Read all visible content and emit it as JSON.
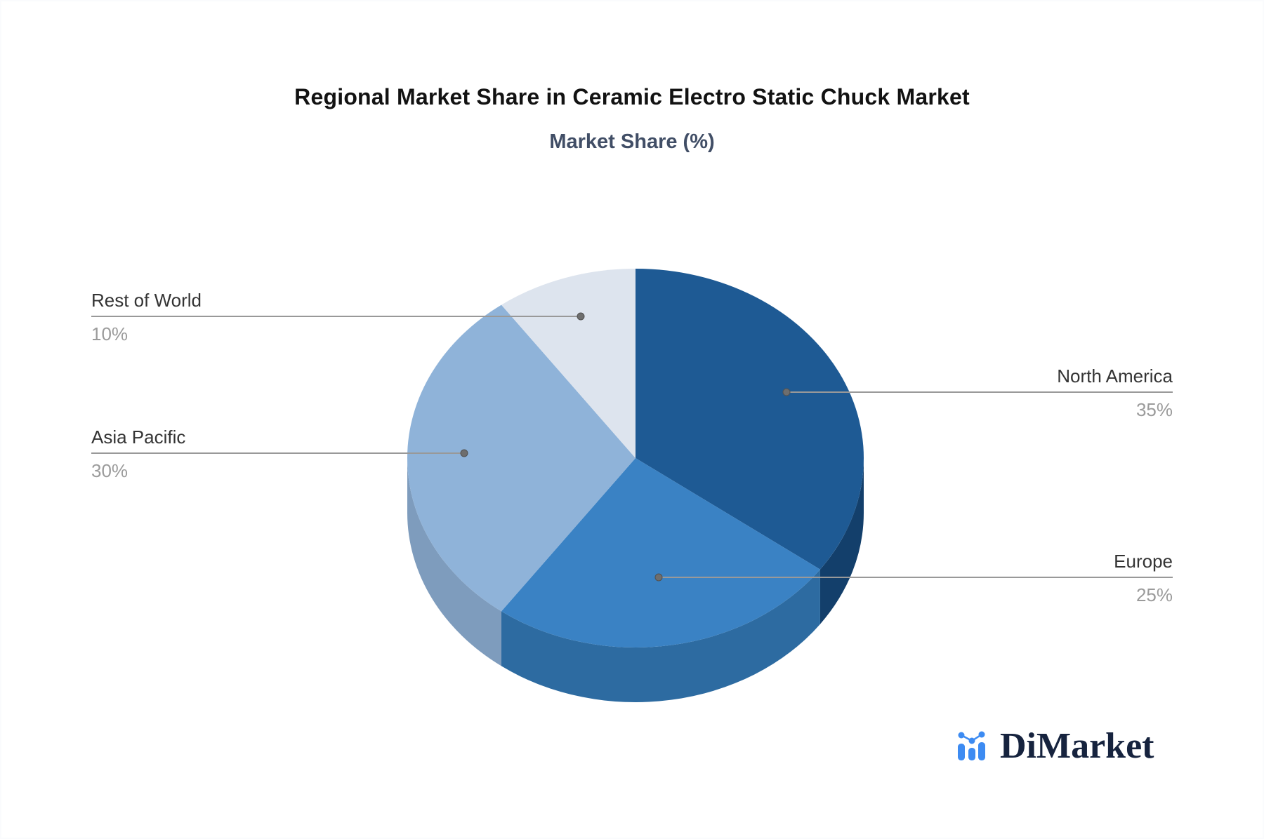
{
  "title": "Regional Market Share in Ceramic Electro Static Chuck Market",
  "subtitle": "Market Share (%)",
  "chart_data": {
    "type": "pie",
    "style": "3d",
    "title": "Regional Market Share in Ceramic Electro Static Chuck Market",
    "subtitle": "Market Share (%)",
    "unit": "%",
    "start_angle": "12-o-clock",
    "direction": "clockwise",
    "legend_position": "callout-labels",
    "slices": [
      {
        "label": "North America",
        "value": 35,
        "pct_label": "35%",
        "color": "#1e5a94",
        "side_color": "#133f6b",
        "label_side": "right"
      },
      {
        "label": "Europe",
        "value": 25,
        "pct_label": "25%",
        "color": "#3a82c4",
        "side_color": "#2d6ba1",
        "label_side": "right"
      },
      {
        "label": "Asia Pacific",
        "value": 30,
        "pct_label": "30%",
        "color": "#8fb3d9",
        "side_color": "#7e9cbd",
        "label_side": "left"
      },
      {
        "label": "Rest of World",
        "value": 10,
        "pct_label": "10%",
        "color": "#dde4ee",
        "side_color": "#c6d1de",
        "label_side": "left"
      }
    ],
    "leader_line_color": "#999999",
    "leader_dot_color": "#6e6e6e",
    "label_color": "#343434",
    "value_color": "#9b9b9b"
  },
  "logo": {
    "text": "DiMarket",
    "icon": "bar-line-chart-icon",
    "accent_color": "#3d8bf2",
    "text_color": "#16233e"
  }
}
